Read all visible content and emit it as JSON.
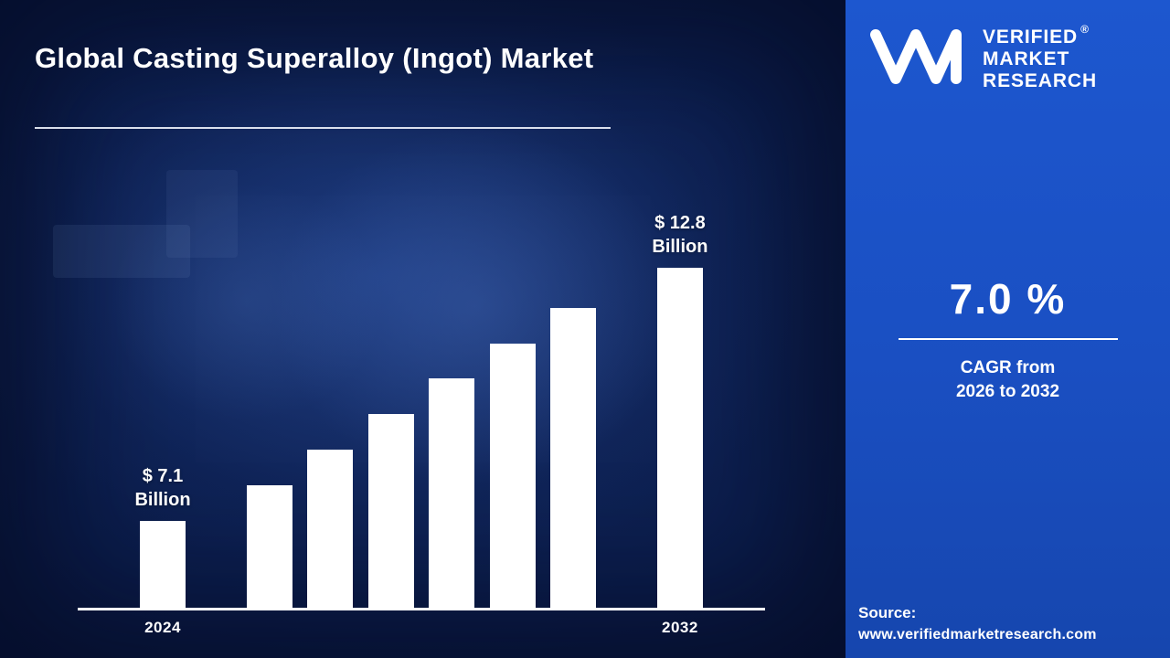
{
  "title": "Global Casting Superalloy (Ingot) Market",
  "colors": {
    "background_navy": "#0b1d4c",
    "panel_blue": "#1a4fc2",
    "bar_color": "#ffffff",
    "text_color": "#ffffff"
  },
  "chart_data": {
    "type": "bar",
    "title": "Global Casting Superalloy (Ingot) Market",
    "categories": [
      "2024",
      "",
      "",
      "",
      "",
      "",
      "",
      "2032"
    ],
    "values": [
      7.1,
      7.9,
      8.7,
      9.5,
      10.3,
      11.1,
      11.9,
      12.8
    ],
    "unit": "$ Billion",
    "xlabel": "",
    "ylabel": "",
    "grid": false,
    "legend": false,
    "annotations": [
      {
        "index": 0,
        "text": "$ 7.1\nBillion"
      },
      {
        "index": 7,
        "text": "$ 12.8\nBillion"
      }
    ],
    "x_ticks": [
      {
        "index": 0,
        "label": "2024"
      },
      {
        "index": 7,
        "label": "2032"
      }
    ]
  },
  "panel": {
    "logo": {
      "monogram": "VM",
      "line1": "VERIFIED",
      "line2": "MARKET",
      "line3": "RESEARCH",
      "registered_mark": "®"
    },
    "cagr_value": "7.0 %",
    "cagr_caption_line1": "CAGR from",
    "cagr_caption_line2": "2026 to 2032",
    "source_label": "Source:",
    "source_url": "www.verifiedmarketresearch.com"
  }
}
